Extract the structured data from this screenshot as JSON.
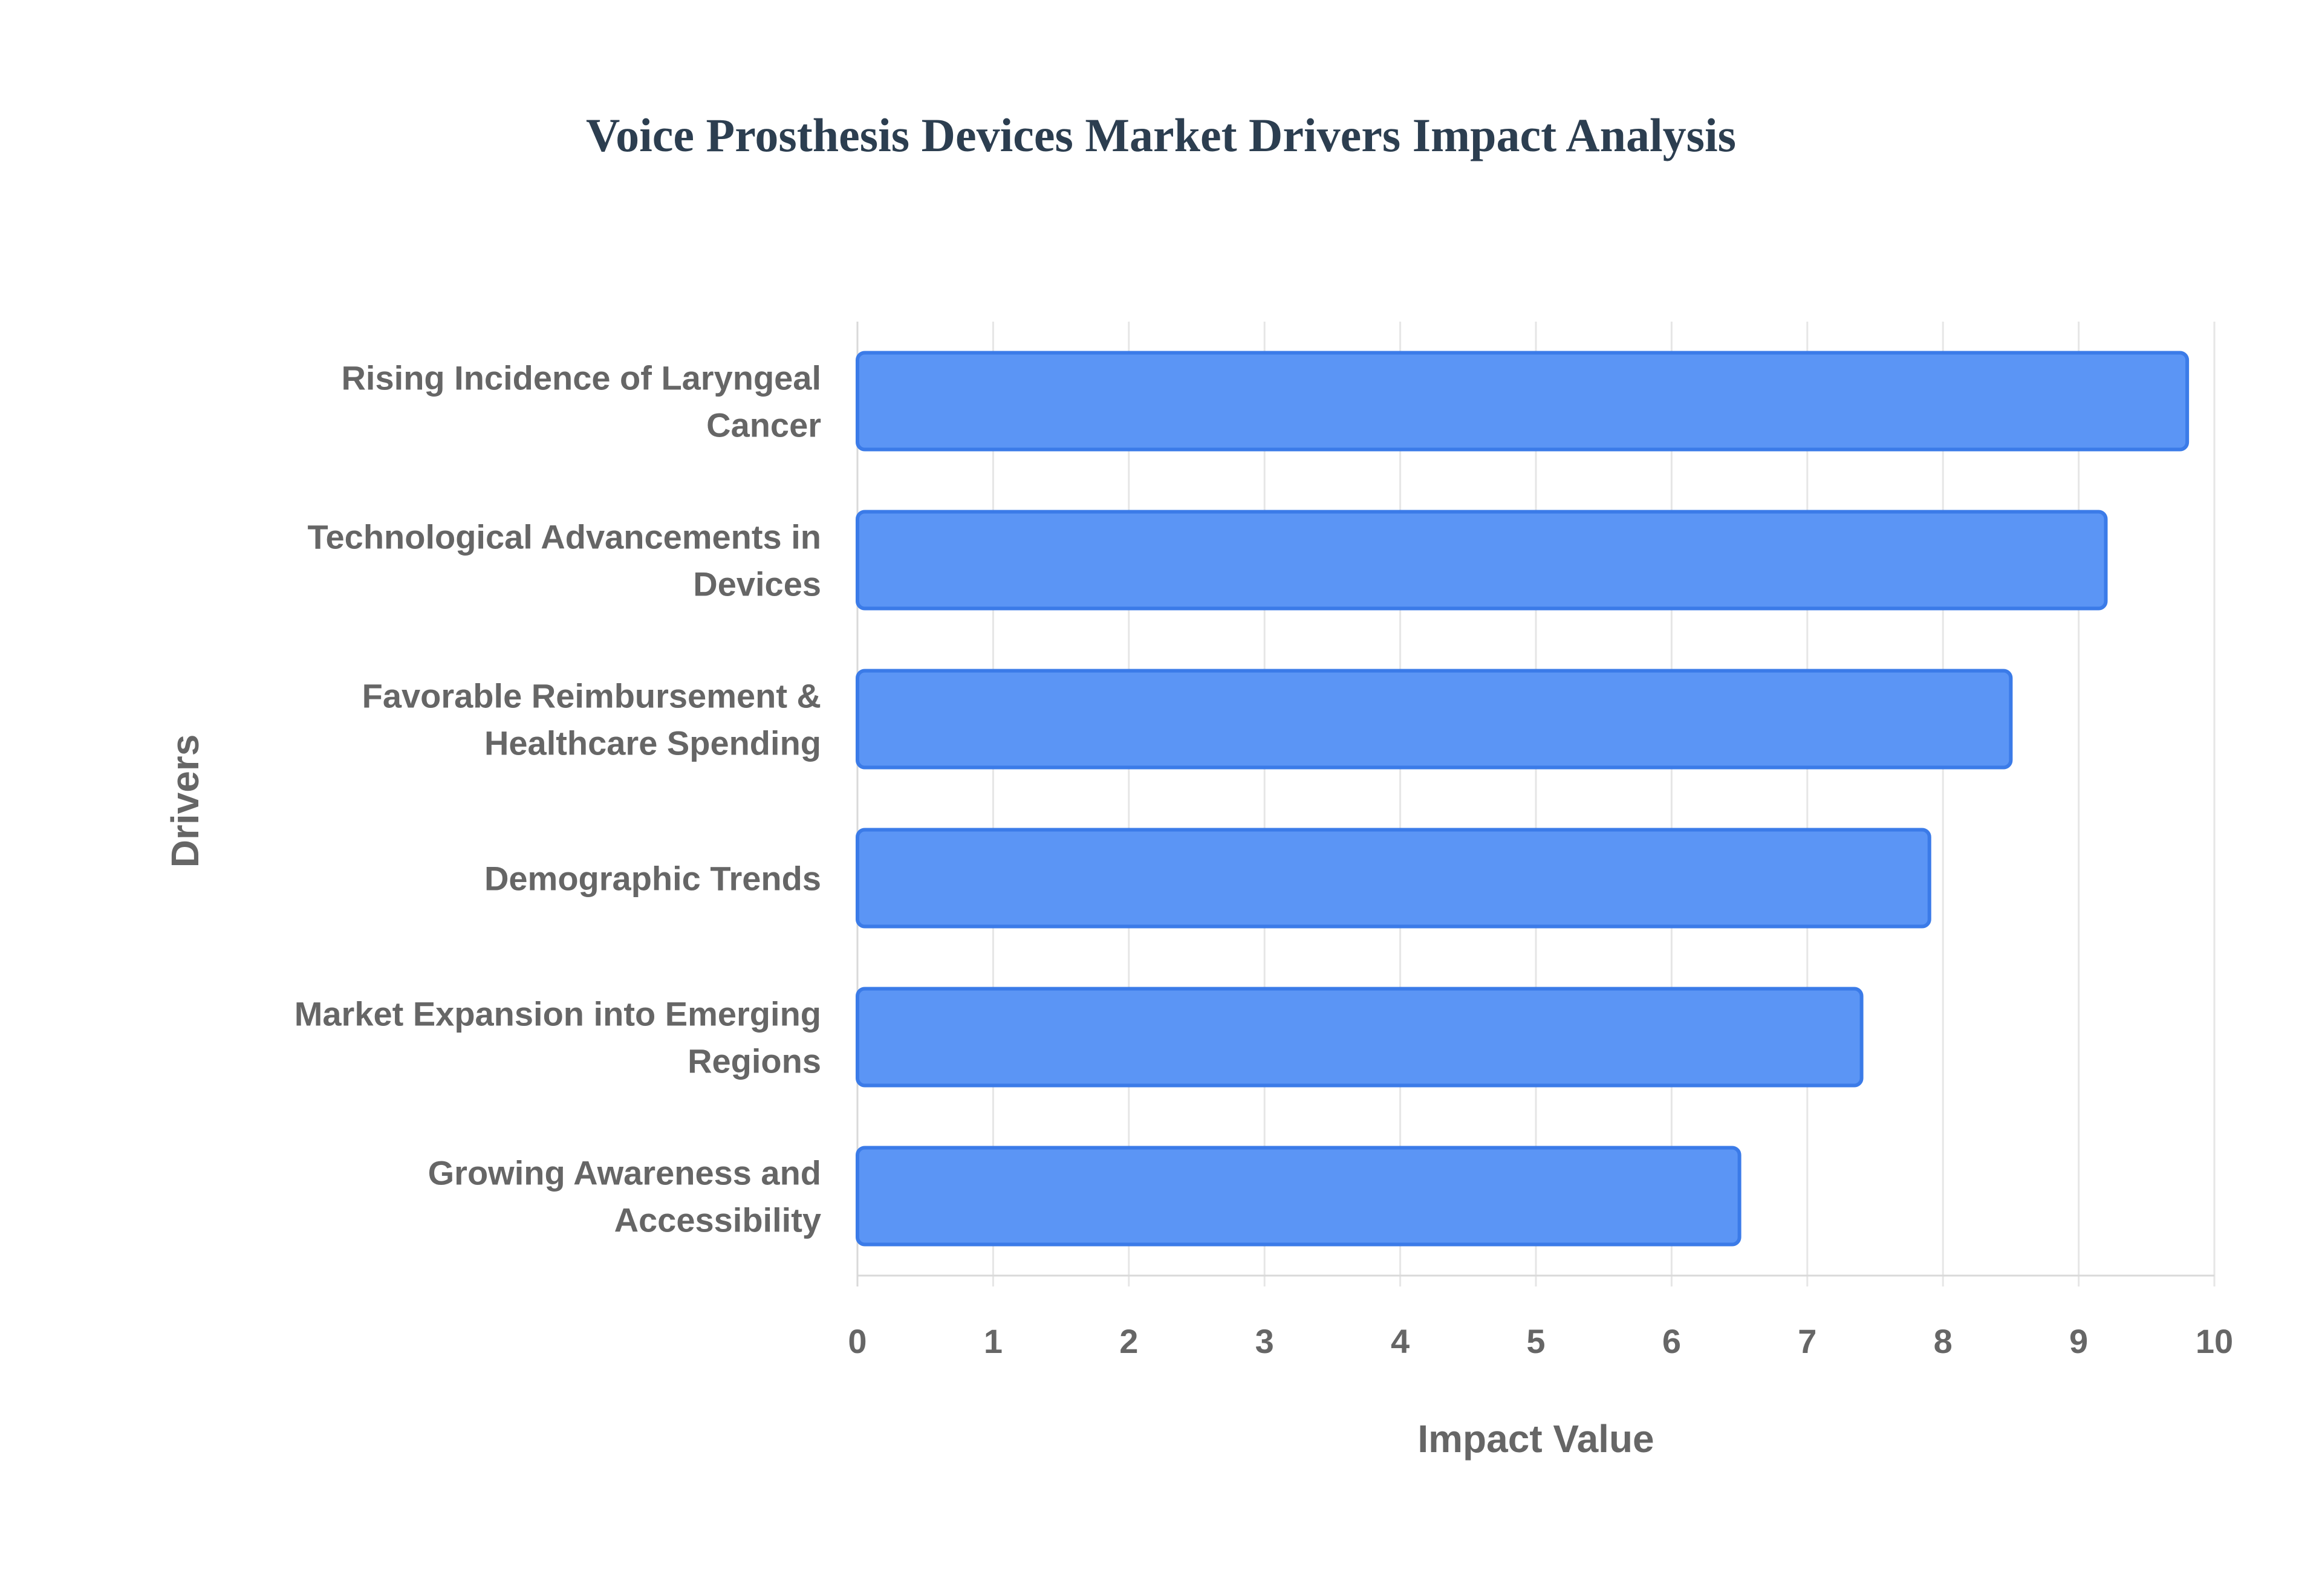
{
  "chart_data": {
    "type": "bar",
    "orientation": "horizontal",
    "title": "Voice Prosthesis Devices Market Drivers Impact Analysis",
    "xlabel": "Impact Value",
    "ylabel": "Drivers",
    "categories": [
      [
        "Rising Incidence of Laryngeal",
        "Cancer"
      ],
      [
        "Technological Advancements in",
        "Devices"
      ],
      [
        "Favorable Reimbursement &",
        "Healthcare Spending"
      ],
      [
        "Demographic Trends"
      ],
      [
        "Market Expansion into Emerging",
        "Regions"
      ],
      [
        "Growing Awareness and",
        "Accessibility"
      ]
    ],
    "values": [
      9.8,
      9.2,
      8.5,
      7.9,
      7.4,
      6.5
    ],
    "xlim": [
      0,
      10
    ],
    "xticks": [
      0,
      1,
      2,
      3,
      4,
      5,
      6,
      7,
      8,
      9,
      10
    ],
    "grid": true,
    "legend": "none",
    "colors": {
      "bar_fill": "#5b95f5",
      "bar_stroke": "#3b7be8",
      "title": "#2c3e50",
      "label": "#666666"
    }
  }
}
